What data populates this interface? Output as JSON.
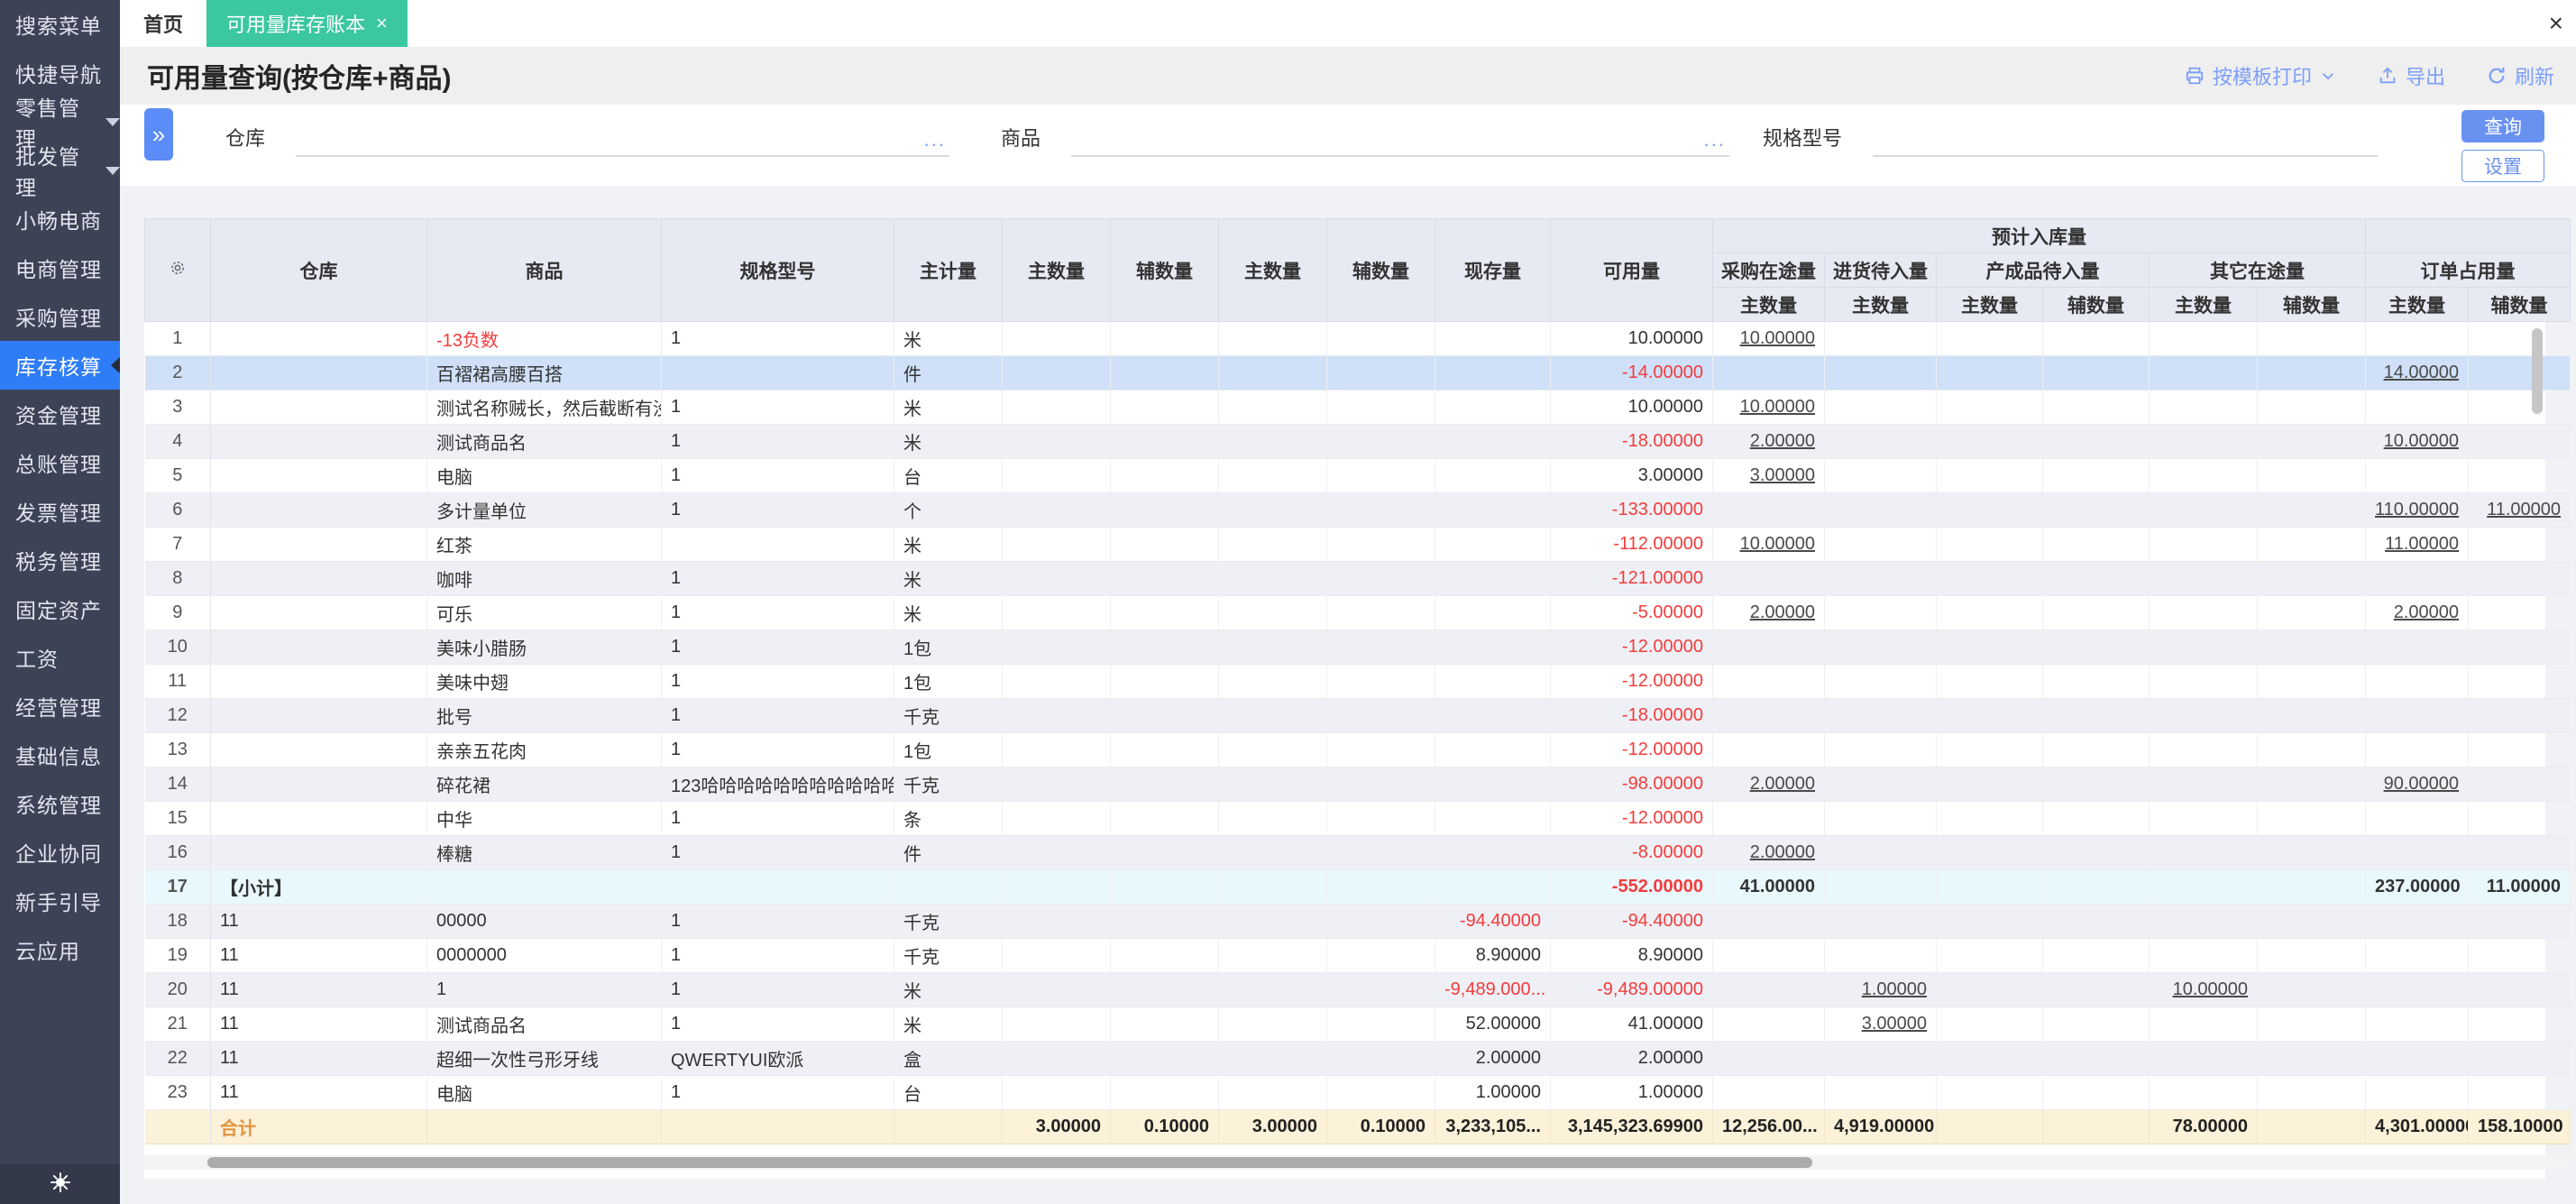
{
  "sidebar": {
    "items": [
      {
        "label": "搜索菜单"
      },
      {
        "label": "快捷导航"
      },
      {
        "label": "零售管理",
        "has_arrow": true
      },
      {
        "label": "批发管理",
        "has_arrow": true
      },
      {
        "label": "小畅电商"
      },
      {
        "label": "电商管理"
      },
      {
        "label": "采购管理"
      },
      {
        "label": "库存核算",
        "active": true
      },
      {
        "label": "资金管理"
      },
      {
        "label": "总账管理"
      },
      {
        "label": "发票管理"
      },
      {
        "label": "税务管理"
      },
      {
        "label": "固定资产"
      },
      {
        "label": "工资"
      },
      {
        "label": "经营管理"
      },
      {
        "label": "基础信息"
      },
      {
        "label": "系统管理"
      },
      {
        "label": "企业协同"
      },
      {
        "label": "新手引导"
      },
      {
        "label": "云应用"
      }
    ]
  },
  "tabbar": {
    "home_tab": "首页",
    "active_tab": "可用量库存账本",
    "close_glyph": "×"
  },
  "page": {
    "title": "可用量查询(按仓库+商品)"
  },
  "actions": {
    "print": "按模板打印",
    "export": "导出",
    "refresh": "刷新"
  },
  "filters": {
    "collapse_glyph": "»",
    "warehouse_label": "仓库",
    "product_label": "商品",
    "spec_label": "规格型号",
    "ellipsis": "...",
    "query_button": "查询",
    "settings_button": "设置"
  },
  "table": {
    "header": {
      "col_warehouse": "仓库",
      "col_product": "商品",
      "col_spec": "规格型号",
      "col_unit": "主计量",
      "col_qty_main": "主数量",
      "col_qty_aux": "辅数量",
      "col_on_hand": "现存量",
      "col_available": "可用量",
      "group_expected": "预计入库量",
      "col_purchase": "采购在途量",
      "col_incoming": "进货待入量",
      "col_finished": "产成品待入量",
      "col_other": "其它在途量",
      "group_order": "订单占用量",
      "sub_main": "主数量",
      "sub_aux": "辅数量"
    },
    "columns": [
      "num",
      "warehouse",
      "product",
      "spec",
      "unit",
      "qty_main",
      "qty_aux",
      "qty_main2",
      "qty_aux2",
      "on_hand",
      "available",
      "purchase_main",
      "incoming_main",
      "finished_main",
      "finished_aux",
      "other_main",
      "other_aux",
      "order_main",
      "order_aux"
    ],
    "rows": [
      {
        "num": "1",
        "product": {
          "v": "-13负数",
          "s": "red"
        },
        "spec": "1",
        "unit": "米",
        "available": "10.00000",
        "purchase_main": {
          "v": "10.00000",
          "s": "link"
        }
      },
      {
        "num": "2",
        "selected": true,
        "product": "百褶裙高腰百搭",
        "unit": "件",
        "available": {
          "v": "-14.00000",
          "s": "red"
        },
        "order_main": {
          "v": "14.00000",
          "s": "link"
        }
      },
      {
        "num": "3",
        "product": "测试名称贼长，然后截断有没...",
        "spec": "1",
        "unit": "米",
        "available": "10.00000",
        "purchase_main": {
          "v": "10.00000",
          "s": "link"
        }
      },
      {
        "num": "4",
        "product": "测试商品名",
        "spec": "1",
        "unit": "米",
        "available": {
          "v": "-18.00000",
          "s": "red"
        },
        "purchase_main": {
          "v": "2.00000",
          "s": "link"
        },
        "order_main": {
          "v": "10.00000",
          "s": "link"
        }
      },
      {
        "num": "5",
        "product": "电脑",
        "spec": "1",
        "unit": "台",
        "available": "3.00000",
        "purchase_main": {
          "v": "3.00000",
          "s": "link"
        }
      },
      {
        "num": "6",
        "product": "多计量单位",
        "spec": "1",
        "unit": "个",
        "available": {
          "v": "-133.00000",
          "s": "red"
        },
        "order_main": {
          "v": "110.00000",
          "s": "link"
        },
        "order_aux": {
          "v": "11.00000",
          "s": "link"
        }
      },
      {
        "num": "7",
        "product": "红茶",
        "unit": "米",
        "available": {
          "v": "-112.00000",
          "s": "red"
        },
        "purchase_main": {
          "v": "10.00000",
          "s": "link"
        },
        "order_main": {
          "v": "11.00000",
          "s": "link"
        }
      },
      {
        "num": "8",
        "product": "咖啡",
        "spec": "1",
        "unit": "米",
        "available": {
          "v": "-121.00000",
          "s": "red"
        }
      },
      {
        "num": "9",
        "product": "可乐",
        "spec": "1",
        "unit": "米",
        "available": {
          "v": "-5.00000",
          "s": "red"
        },
        "purchase_main": {
          "v": "2.00000",
          "s": "link"
        },
        "order_main": {
          "v": "2.00000",
          "s": "link"
        }
      },
      {
        "num": "10",
        "product": "美味小腊肠",
        "spec": "1",
        "unit": "1包",
        "available": {
          "v": "-12.00000",
          "s": "red"
        }
      },
      {
        "num": "11",
        "product": "美味中翅",
        "spec": "1",
        "unit": "1包",
        "available": {
          "v": "-12.00000",
          "s": "red"
        }
      },
      {
        "num": "12",
        "product": "批号",
        "spec": "1",
        "unit": "千克",
        "available": {
          "v": "-18.00000",
          "s": "red"
        }
      },
      {
        "num": "13",
        "product": "亲亲五花肉",
        "spec": "1",
        "unit": "1包",
        "available": {
          "v": "-12.00000",
          "s": "red"
        }
      },
      {
        "num": "14",
        "product": "碎花裙",
        "spec": "123哈哈哈哈哈哈哈哈哈哈哈...",
        "unit": "千克",
        "available": {
          "v": "-98.00000",
          "s": "red"
        },
        "purchase_main": {
          "v": "2.00000",
          "s": "link"
        },
        "order_main": {
          "v": "90.00000",
          "s": "link"
        }
      },
      {
        "num": "15",
        "product": "中华",
        "spec": "1",
        "unit": "条",
        "available": {
          "v": "-12.00000",
          "s": "red"
        }
      },
      {
        "num": "16",
        "product": "棒糖",
        "spec": "1",
        "unit": "件",
        "available": {
          "v": "-8.00000",
          "s": "red"
        },
        "purchase_main": {
          "v": "2.00000",
          "s": "link"
        }
      },
      {
        "num": "17",
        "type": "subtotal",
        "warehouse": "【小计】",
        "available": {
          "v": "-552.00000",
          "s": "red bold"
        },
        "purchase_main": {
          "v": "41.00000",
          "s": "bold"
        },
        "order_main": {
          "v": "237.00000",
          "s": "bold"
        },
        "order_aux": {
          "v": "11.00000",
          "s": "bold"
        }
      },
      {
        "num": "18",
        "warehouse": "11",
        "product": "00000",
        "spec": "1",
        "unit": "千克",
        "on_hand": {
          "v": "-94.40000",
          "s": "red"
        },
        "available": {
          "v": "-94.40000",
          "s": "red"
        }
      },
      {
        "num": "19",
        "warehouse": "11",
        "product": "0000000",
        "spec": "1",
        "unit": "千克",
        "on_hand": "8.90000",
        "available": "8.90000"
      },
      {
        "num": "20",
        "warehouse": "11",
        "product": "1",
        "spec": "1",
        "unit": "米",
        "on_hand": {
          "v": "-9,489.000...",
          "s": "red"
        },
        "available": {
          "v": "-9,489.00000",
          "s": "red"
        },
        "incoming_main": {
          "v": "1.00000",
          "s": "link"
        },
        "other_main": {
          "v": "10.00000",
          "s": "link"
        }
      },
      {
        "num": "21",
        "warehouse": "11",
        "product": "测试商品名",
        "spec": "1",
        "unit": "米",
        "on_hand": "52.00000",
        "available": "41.00000",
        "incoming_main": {
          "v": "3.00000",
          "s": "link"
        }
      },
      {
        "num": "22",
        "warehouse": "11",
        "product": "超细一次性弓形牙线",
        "spec": "QWERTYUI欧派",
        "unit": "盒",
        "on_hand": "2.00000",
        "available": "2.00000"
      },
      {
        "num": "23",
        "warehouse": "11",
        "product": "电脑",
        "spec": "1",
        "unit": "台",
        "on_hand": "1.00000",
        "available": "1.00000"
      }
    ],
    "footer": {
      "label": "合计",
      "qty_main": "3.00000",
      "qty_aux": "0.10000",
      "qty_main2": "3.00000",
      "qty_aux2": "0.10000",
      "on_hand": "3,233,105...",
      "available": "3,145,323.69900",
      "purchase_main": "12,256.00...",
      "incoming_main": "4,919.00000",
      "other_main": "78.00000",
      "order_main": "4,301.00000",
      "order_aux": "158.10000"
    }
  },
  "colors": {
    "sidebar_bg": "#3d4356",
    "accent_blue": "#2e7cf6",
    "tab_green": "#3bc8a1",
    "negative_red": "#f23c3c",
    "selected_row_bg": "#cfe0f8",
    "subtotal_bg": "#e9f8fd",
    "footer_bg": "#fcf1d9",
    "action_blue": "#7d9ff8"
  }
}
